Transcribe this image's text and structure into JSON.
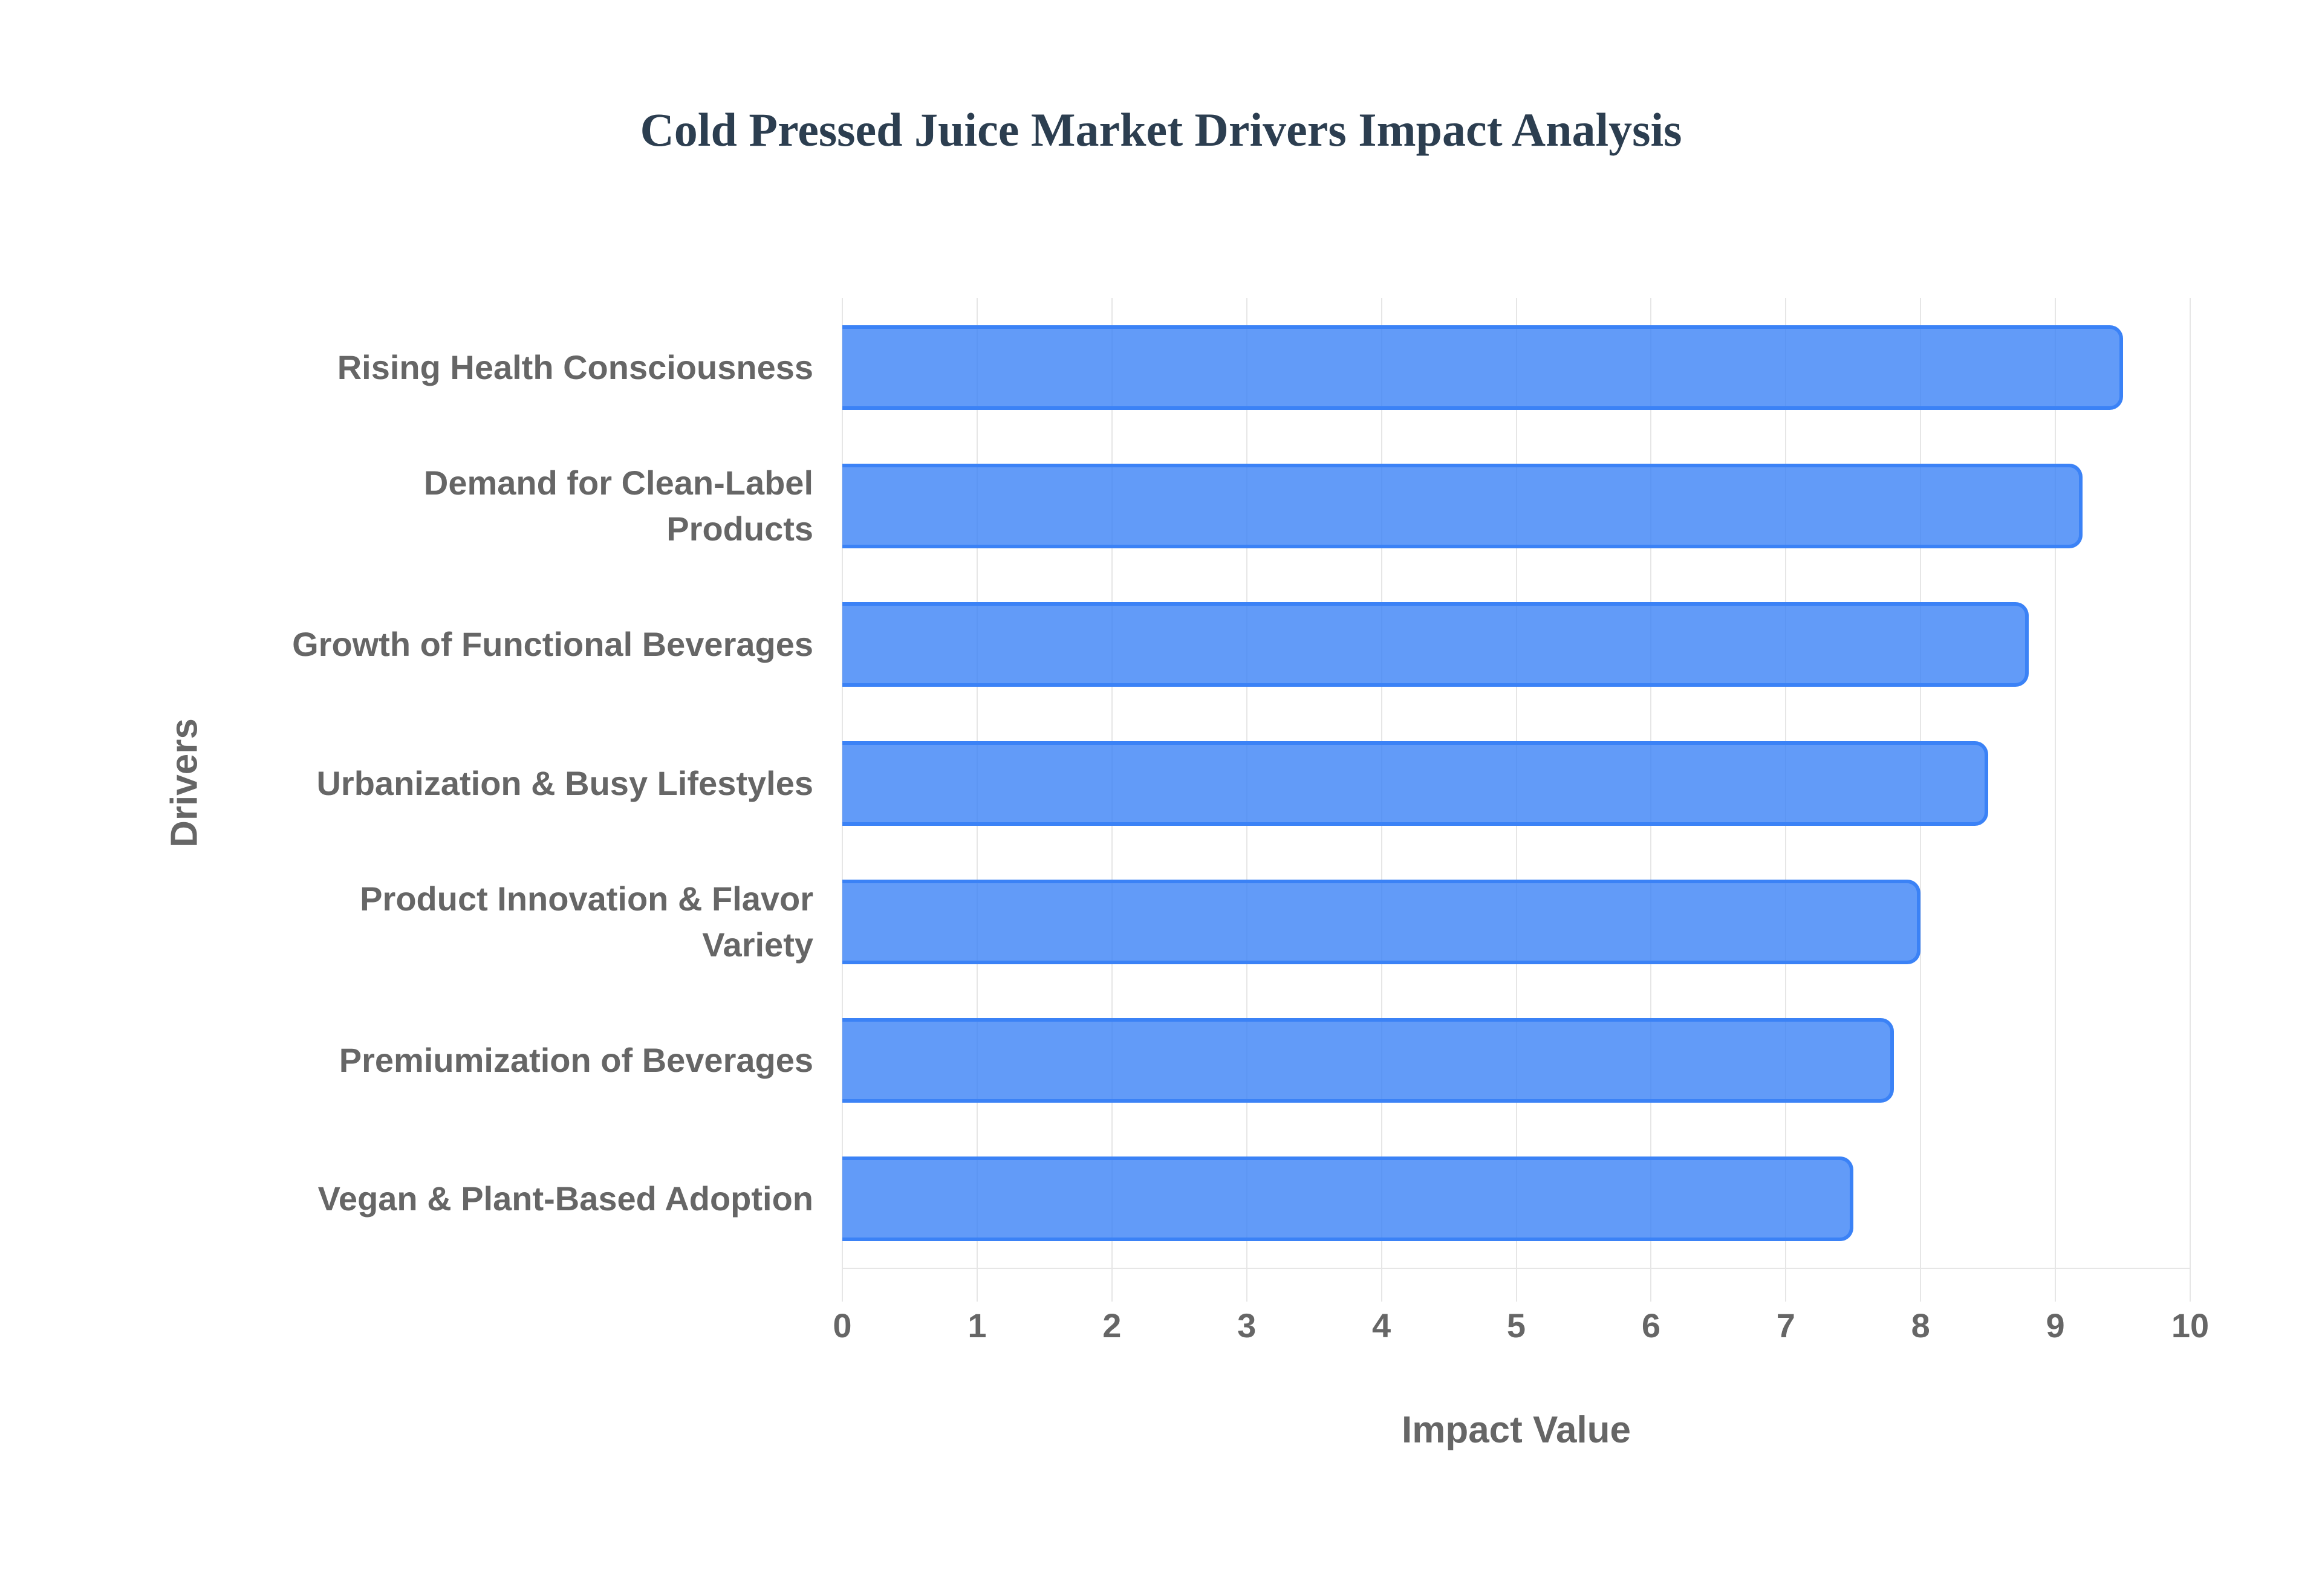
{
  "chart_data": {
    "type": "bar",
    "orientation": "horizontal",
    "title": "Cold Pressed Juice Market Drivers Impact Analysis",
    "xlabel": "Impact Value",
    "ylabel": "Drivers",
    "xlim": [
      0,
      10
    ],
    "xticks": [
      "0",
      "1",
      "2",
      "3",
      "4",
      "5",
      "6",
      "7",
      "8",
      "9",
      "10"
    ],
    "grid": true,
    "legend": null,
    "categories": [
      "Rising Health Consciousness",
      "Demand for Clean-Label Products",
      "Growth of Functional Beverages",
      "Urbanization & Busy Lifestyles",
      "Product Innovation & Flavor Variety",
      "Premiumization of Beverages",
      "Vegan & Plant-Based Adoption"
    ],
    "category_lines": [
      [
        "Rising Health Consciousness"
      ],
      [
        "Demand for Clean-Label",
        "Products"
      ],
      [
        "Growth of Functional Beverages"
      ],
      [
        "Urbanization & Busy Lifestyles"
      ],
      [
        "Product Innovation & Flavor",
        "Variety"
      ],
      [
        "Premiumization of Beverages"
      ],
      [
        "Vegan & Plant-Based Adoption"
      ]
    ],
    "values": [
      9.5,
      9.2,
      8.8,
      8.5,
      8.0,
      7.8,
      7.5
    ],
    "colors": {
      "bar_fill": "#6399f4",
      "bar_border": "#3b82f6",
      "title": "#2c3e50",
      "axis_text": "#666666",
      "grid": "#e6e6e6"
    }
  }
}
